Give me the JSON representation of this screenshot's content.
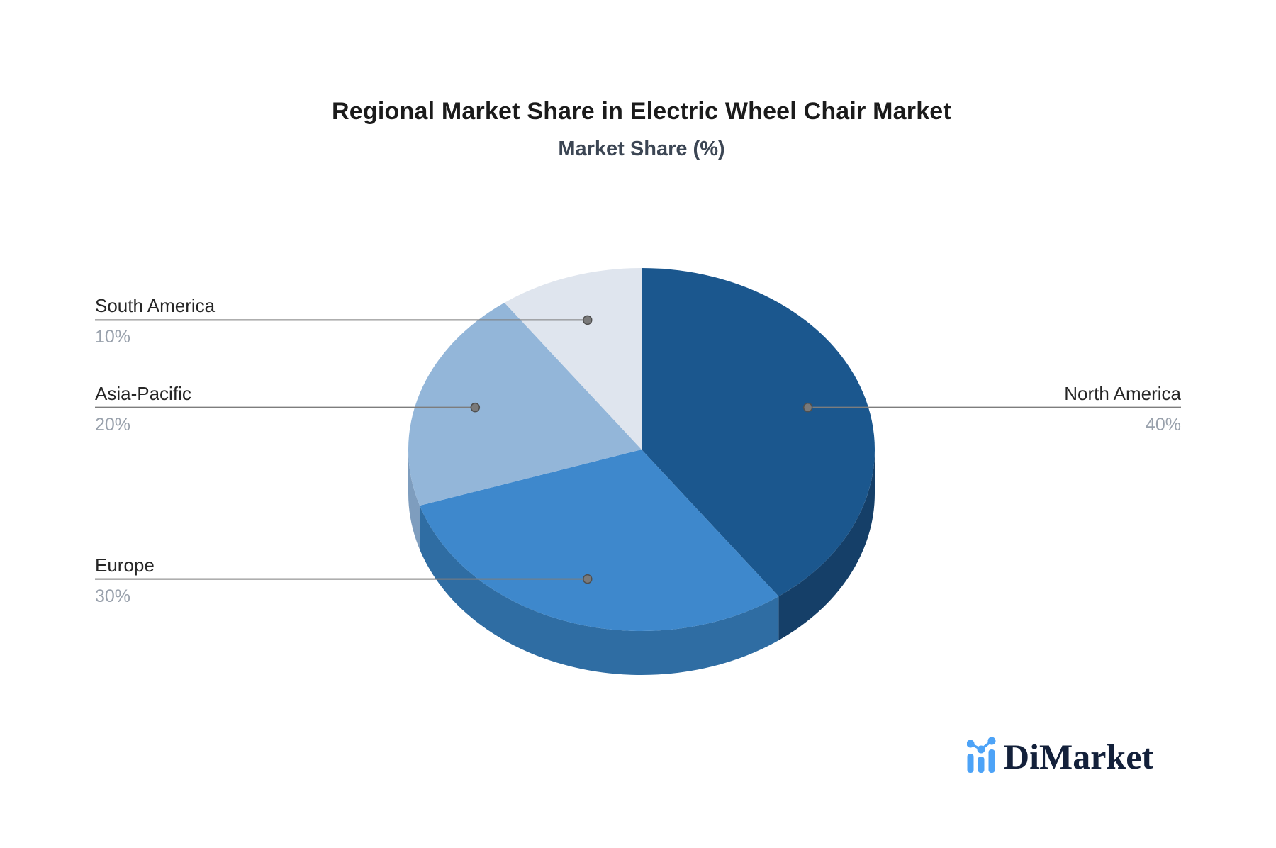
{
  "page": {
    "background": "#ffffff",
    "title": "Regional Market Share in Electric Wheel Chair Market",
    "subtitle": "Market Share (%)"
  },
  "branding": {
    "logo_text": "DiMarket",
    "logo_icon": "bar-trend-chart-icon",
    "logo_icon_color": "#4da3f7",
    "logo_text_color": "#13203a"
  },
  "chart_data": {
    "type": "pie",
    "style": "3d",
    "title": "Regional Market Share in Electric Wheel Chair Market",
    "subtitle": "Market Share (%)",
    "unit": "%",
    "start_angle_deg": 0,
    "direction": "clockwise",
    "legend_position": "callout-labels",
    "categories": [
      "North America",
      "Europe",
      "Asia-Pacific",
      "South America"
    ],
    "values": [
      40,
      30,
      20,
      10
    ],
    "slices": [
      {
        "label": "North America",
        "value": 40,
        "pct_label": "40%",
        "color": "#1b578e",
        "side_color": "#153f68",
        "callout_side": "right"
      },
      {
        "label": "Europe",
        "value": 30,
        "pct_label": "30%",
        "color": "#3e88cc",
        "side_color": "#2f6da3",
        "callout_side": "left"
      },
      {
        "label": "Asia-Pacific",
        "value": 20,
        "pct_label": "20%",
        "color": "#93b6d9",
        "side_color": "#7e9dbe",
        "callout_side": "left"
      },
      {
        "label": "South America",
        "value": 10,
        "pct_label": "10%",
        "color": "#dfe5ee",
        "side_color": "#c3cddc",
        "callout_side": "left"
      }
    ],
    "callout_line_color": "#7d7d7d",
    "callout_dot_color": "#7a7a7a",
    "callout_dot_ring_color": "#4f4f4f",
    "label_text_color": "#262626",
    "pct_text_color": "#99a1ac"
  }
}
